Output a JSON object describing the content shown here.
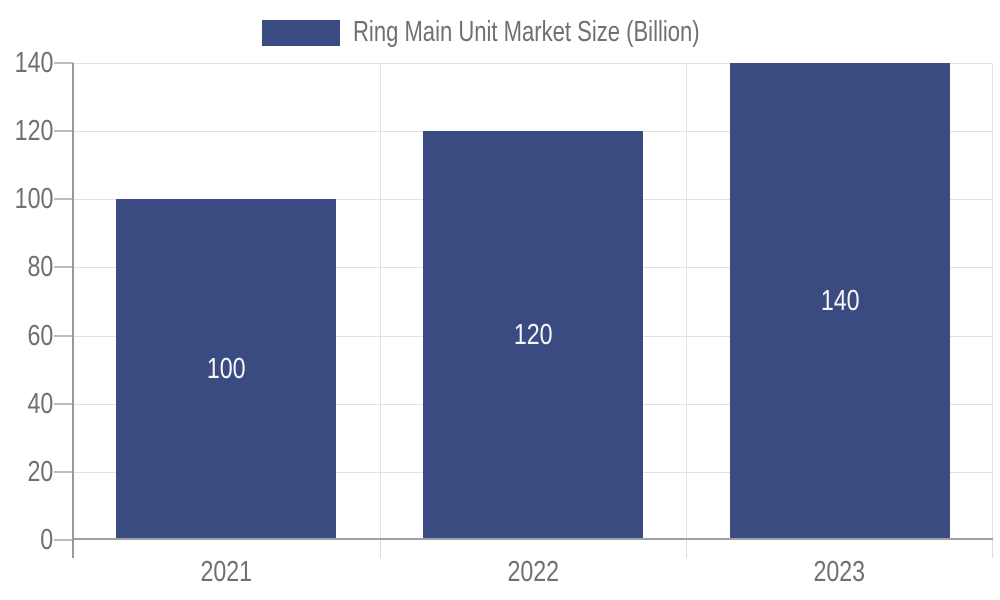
{
  "chart_data": {
    "type": "bar",
    "title": "Ring Main Unit Market Size (Billion)",
    "categories": [
      "2021",
      "2022",
      "2023"
    ],
    "series": [
      {
        "name": "Ring Main Unit Market Size (Billion)",
        "values": [
          100,
          120,
          140
        ]
      }
    ],
    "bar_value_labels": [
      "100",
      "120",
      "140"
    ],
    "xlabel": "",
    "ylabel": "",
    "ylim": [
      0,
      140
    ],
    "yticks": [
      0,
      20,
      40,
      60,
      80,
      100,
      120,
      140
    ],
    "grid": true,
    "legend_position": "top-center",
    "colors": {
      "bar": "#3A4B82",
      "value_label": "#f7f7f7",
      "tick_text": "#707070",
      "gridline": "#e2e2e2",
      "axis_line": "#9e9e9e",
      "background": "#ffffff"
    }
  }
}
